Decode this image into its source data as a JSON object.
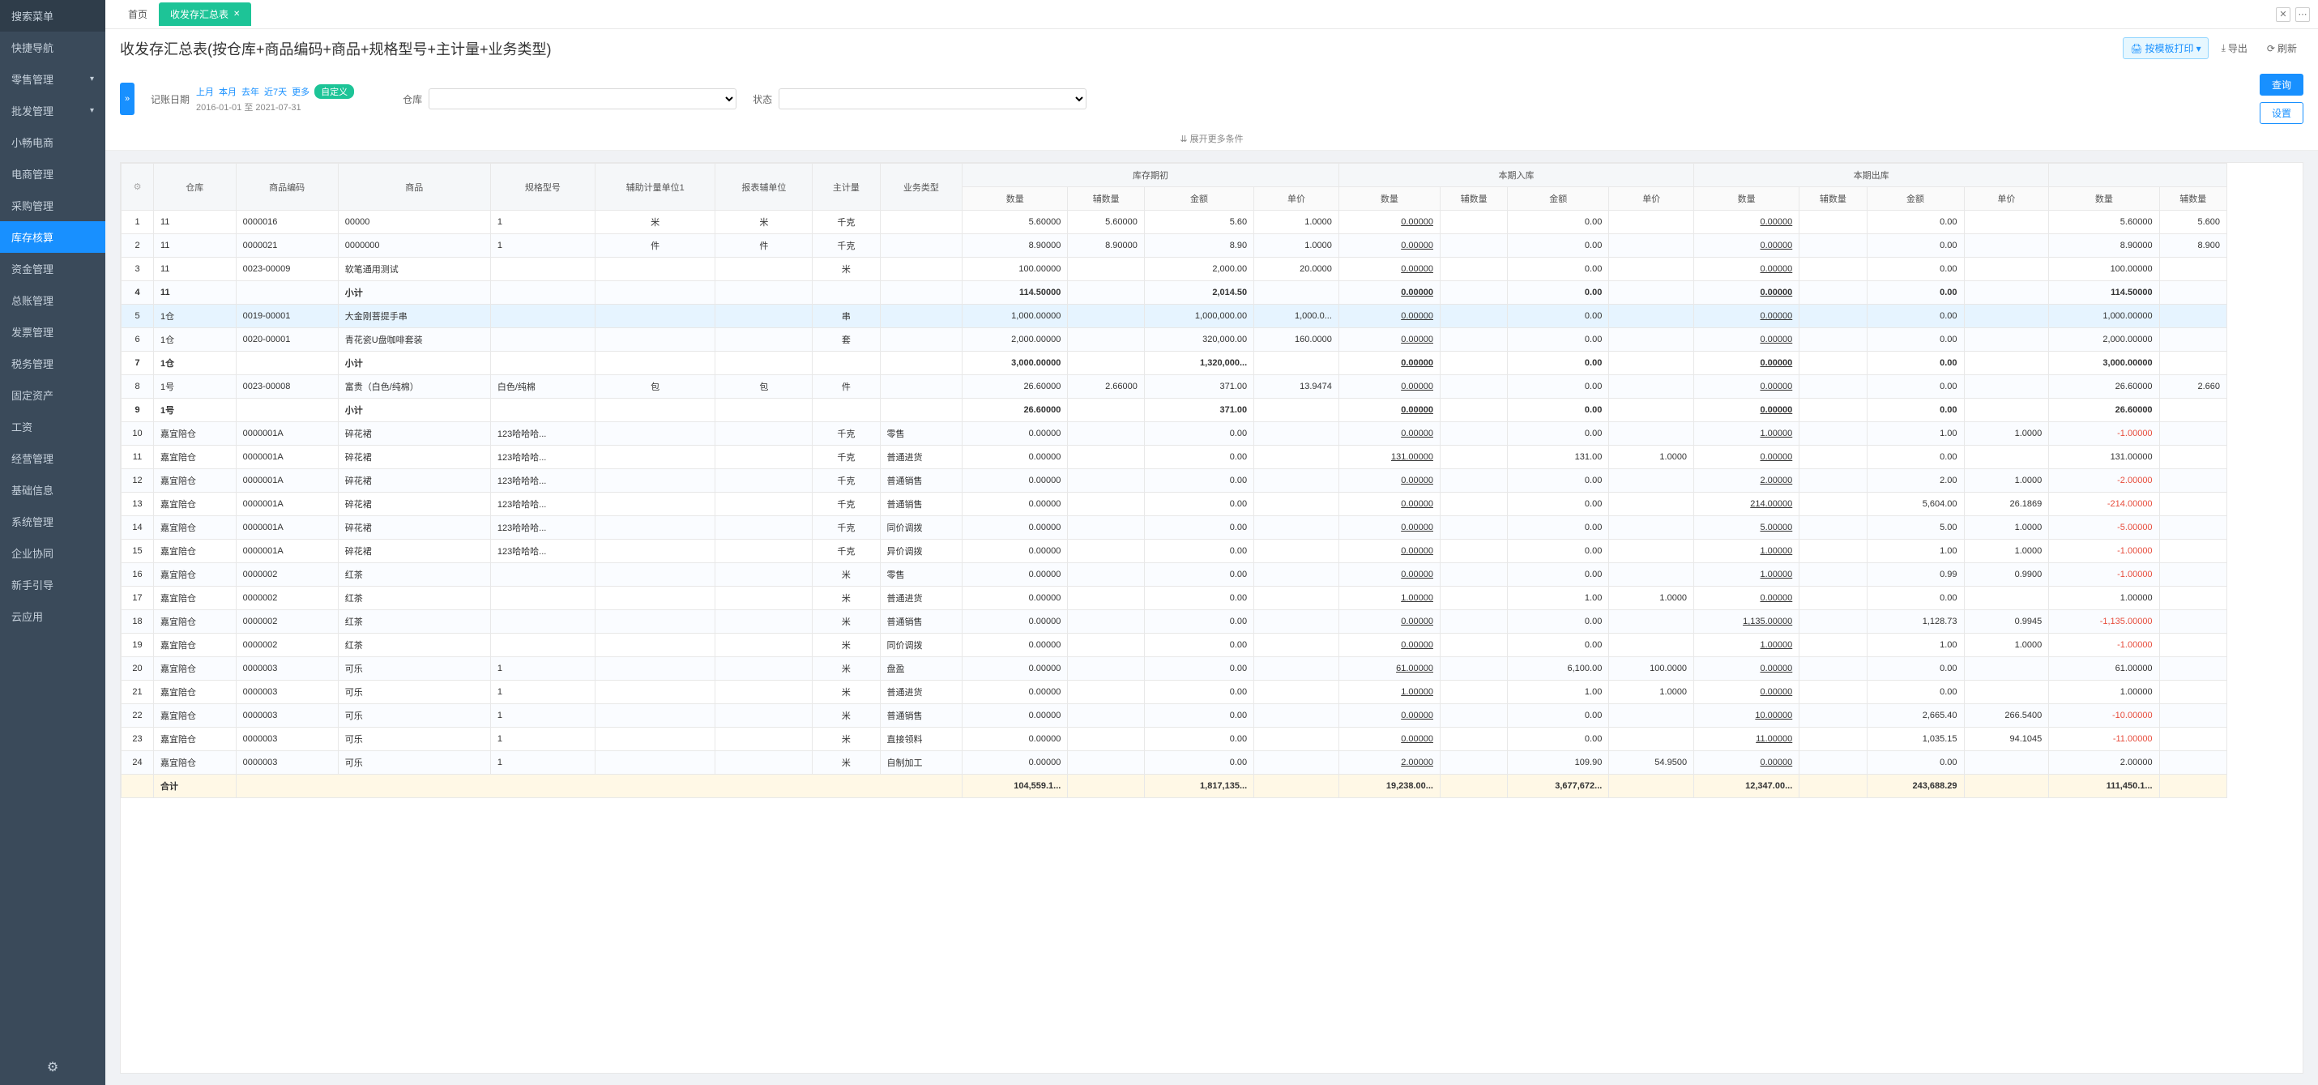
{
  "sidebar": {
    "items": [
      {
        "label": "搜索菜单",
        "hasArrow": false
      },
      {
        "label": "快捷导航",
        "hasArrow": false
      },
      {
        "label": "零售管理",
        "hasArrow": true
      },
      {
        "label": "批发管理",
        "hasArrow": true
      },
      {
        "label": "小畅电商",
        "hasArrow": false
      },
      {
        "label": "电商管理",
        "hasArrow": false
      },
      {
        "label": "采购管理",
        "hasArrow": false
      },
      {
        "label": "库存核算",
        "hasArrow": false,
        "active": true
      },
      {
        "label": "资金管理",
        "hasArrow": false
      },
      {
        "label": "总账管理",
        "hasArrow": false
      },
      {
        "label": "发票管理",
        "hasArrow": false
      },
      {
        "label": "税务管理",
        "hasArrow": false
      },
      {
        "label": "固定资产",
        "hasArrow": false
      },
      {
        "label": "工资",
        "hasArrow": false
      },
      {
        "label": "经营管理",
        "hasArrow": false
      },
      {
        "label": "基础信息",
        "hasArrow": false
      },
      {
        "label": "系统管理",
        "hasArrow": false
      },
      {
        "label": "企业协同",
        "hasArrow": false
      },
      {
        "label": "新手引导",
        "hasArrow": false
      },
      {
        "label": "云应用",
        "hasArrow": false
      }
    ]
  },
  "tabs": {
    "home": "首页",
    "active": "收发存汇总表"
  },
  "page": {
    "title": "收发存汇总表(按仓库+商品编码+商品+规格型号+主计量+业务类型)",
    "actions": {
      "printByTemplate": "按模板打印",
      "export": "导出",
      "refresh": "刷新"
    }
  },
  "filter": {
    "dateLabel": "记账日期",
    "quickLinks": [
      "上月",
      "本月",
      "去年",
      "近7天",
      "更多"
    ],
    "customBadge": "自定义",
    "dateRange": "2016-01-01 至 2021-07-31",
    "warehouseLabel": "仓库",
    "statusLabel": "状态",
    "queryBtn": "查询",
    "settingsBtn": "设置",
    "expandMore": "展开更多条件"
  },
  "table": {
    "groupHeaders": {
      "opening": "库存期初",
      "inbound": "本期入库",
      "outbound": "本期出库"
    },
    "columns": {
      "idx": "",
      "warehouse": "仓库",
      "productCode": "商品编码",
      "product": "商品",
      "spec": "规格型号",
      "aux1": "辅助计量单位1",
      "invUnit": "报表辅单位",
      "mainUnit": "主计量",
      "bizType": "业务类型",
      "qty": "数量",
      "auxQty": "辅数量",
      "amount": "金额",
      "price": "单价"
    },
    "footerLabel": "合计",
    "footer": {
      "open_qty": "104,559.1...",
      "open_amt": "1,817,135...",
      "in_qty": "19,238.00...",
      "in_amt": "3,677,672...",
      "out_qty": "12,347.00...",
      "out_amt": "243,688.29",
      "next_qty": "111,450.1..."
    },
    "rows": [
      {
        "idx": 1,
        "wh": "11",
        "code": "0000016",
        "prod": "00000",
        "spec": "1",
        "aux1": "米",
        "invUnit": "米",
        "mainUnit": "千克",
        "biz": "",
        "o_qty": "5.60000",
        "o_aux": "5.60000",
        "o_amt": "5.60",
        "o_pr": "1.0000",
        "i_qty": "0.00000",
        "i_amt": "0.00",
        "out_qty": "0.00000",
        "out_amt": "0.00",
        "n_qty": "5.60000",
        "n_aux": "5.600"
      },
      {
        "idx": 2,
        "wh": "11",
        "code": "0000021",
        "prod": "0000000",
        "spec": "1",
        "aux1": "件",
        "invUnit": "件",
        "mainUnit": "千克",
        "biz": "",
        "o_qty": "8.90000",
        "o_aux": "8.90000",
        "o_amt": "8.90",
        "o_pr": "1.0000",
        "i_qty": "0.00000",
        "i_amt": "0.00",
        "out_qty": "0.00000",
        "out_amt": "0.00",
        "n_qty": "8.90000",
        "n_aux": "8.900"
      },
      {
        "idx": 3,
        "wh": "11",
        "code": "0023-00009",
        "prod": "软笔通用测试",
        "spec": "",
        "aux1": "",
        "invUnit": "",
        "mainUnit": "米",
        "biz": "",
        "o_qty": "100.00000",
        "o_aux": "",
        "o_amt": "2,000.00",
        "o_pr": "20.0000",
        "i_qty": "0.00000",
        "i_amt": "0.00",
        "out_qty": "0.00000",
        "out_amt": "0.00",
        "n_qty": "100.00000",
        "n_aux": ""
      },
      {
        "idx": 4,
        "wh": "11",
        "code": "",
        "prod": "小计",
        "subtotal": true,
        "o_qty": "114.50000",
        "o_amt": "2,014.50",
        "i_qty": "0.00000",
        "i_amt": "0.00",
        "out_qty": "0.00000",
        "out_amt": "0.00",
        "n_qty": "114.50000"
      },
      {
        "idx": 5,
        "wh": "1仓",
        "code": "0019-00001",
        "prod": "大金刚菩提手串",
        "mainUnit": "串",
        "highlight": true,
        "o_qty": "1,000.00000",
        "o_amt": "1,000,000.00",
        "o_pr": "1,000.0...",
        "i_qty": "0.00000",
        "i_amt": "0.00",
        "out_qty": "0.00000",
        "out_amt": "0.00",
        "n_qty": "1,000.00000"
      },
      {
        "idx": 6,
        "wh": "1仓",
        "code": "0020-00001",
        "prod": "青花瓷U盘咖啡套装",
        "mainUnit": "套",
        "o_qty": "2,000.00000",
        "o_amt": "320,000.00",
        "o_pr": "160.0000",
        "i_qty": "0.00000",
        "i_amt": "0.00",
        "out_qty": "0.00000",
        "out_amt": "0.00",
        "n_qty": "2,000.00000"
      },
      {
        "idx": 7,
        "wh": "1仓",
        "code": "",
        "prod": "小计",
        "subtotal": true,
        "o_qty": "3,000.00000",
        "o_amt": "1,320,000...",
        "i_qty": "0.00000",
        "i_amt": "0.00",
        "out_qty": "0.00000",
        "out_amt": "0.00",
        "n_qty": "3,000.00000"
      },
      {
        "idx": 8,
        "wh": "1号",
        "code": "0023-00008",
        "prod": "富贵（白色/纯棉）",
        "spec": "白色/纯棉",
        "aux1": "包",
        "invUnit": "包",
        "mainUnit": "件",
        "o_qty": "26.60000",
        "o_aux": "2.66000",
        "o_amt": "371.00",
        "o_pr": "13.9474",
        "i_qty": "0.00000",
        "i_amt": "0.00",
        "out_qty": "0.00000",
        "out_amt": "0.00",
        "n_qty": "26.60000",
        "n_aux": "2.660"
      },
      {
        "idx": 9,
        "wh": "1号",
        "code": "",
        "prod": "小计",
        "subtotal": true,
        "o_qty": "26.60000",
        "o_amt": "371.00",
        "i_qty": "0.00000",
        "i_amt": "0.00",
        "out_qty": "0.00000",
        "out_amt": "0.00",
        "n_qty": "26.60000"
      },
      {
        "idx": 10,
        "wh": "嘉宜陪仓",
        "code": "0000001A",
        "prod": "碎花裙",
        "spec": "123哈哈哈...",
        "mainUnit": "千克",
        "biz": "零售",
        "o_qty": "0.00000",
        "o_amt": "0.00",
        "i_qty": "0.00000",
        "i_amt": "0.00",
        "out_qty": "1.00000",
        "out_amt": "1.00",
        "out_pr": "1.0000",
        "n_qty": "-1.00000",
        "neg": true
      },
      {
        "idx": 11,
        "wh": "嘉宜陪仓",
        "code": "0000001A",
        "prod": "碎花裙",
        "spec": "123哈哈哈...",
        "mainUnit": "千克",
        "biz": "普通进货",
        "o_qty": "0.00000",
        "o_amt": "0.00",
        "i_qty": "131.00000",
        "i_amt": "131.00",
        "i_pr": "1.0000",
        "out_qty": "0.00000",
        "out_amt": "0.00",
        "n_qty": "131.00000"
      },
      {
        "idx": 12,
        "wh": "嘉宜陪仓",
        "code": "0000001A",
        "prod": "碎花裙",
        "spec": "123哈哈哈...",
        "mainUnit": "千克",
        "biz": "普通销售",
        "o_qty": "0.00000",
        "o_amt": "0.00",
        "i_qty": "0.00000",
        "i_amt": "0.00",
        "out_qty": "2.00000",
        "out_amt": "2.00",
        "out_pr": "1.0000",
        "n_qty": "-2.00000",
        "neg": true
      },
      {
        "idx": 13,
        "wh": "嘉宜陪仓",
        "code": "0000001A",
        "prod": "碎花裙",
        "spec": "123哈哈哈...",
        "mainUnit": "千克",
        "biz": "普通销售",
        "o_qty": "0.00000",
        "o_amt": "0.00",
        "i_qty": "0.00000",
        "i_amt": "0.00",
        "out_qty": "214.00000",
        "out_amt": "5,604.00",
        "out_pr": "26.1869",
        "n_qty": "-214.00000",
        "neg": true
      },
      {
        "idx": 14,
        "wh": "嘉宜陪仓",
        "code": "0000001A",
        "prod": "碎花裙",
        "spec": "123哈哈哈...",
        "mainUnit": "千克",
        "biz": "同价调拨",
        "o_qty": "0.00000",
        "o_amt": "0.00",
        "i_qty": "0.00000",
        "i_amt": "0.00",
        "out_qty": "5.00000",
        "out_amt": "5.00",
        "out_pr": "1.0000",
        "n_qty": "-5.00000",
        "neg": true
      },
      {
        "idx": 15,
        "wh": "嘉宜陪仓",
        "code": "0000001A",
        "prod": "碎花裙",
        "spec": "123哈哈哈...",
        "mainUnit": "千克",
        "biz": "异价调拨",
        "o_qty": "0.00000",
        "o_amt": "0.00",
        "i_qty": "0.00000",
        "i_amt": "0.00",
        "out_qty": "1.00000",
        "out_amt": "1.00",
        "out_pr": "1.0000",
        "n_qty": "-1.00000",
        "neg": true
      },
      {
        "idx": 16,
        "wh": "嘉宜陪仓",
        "code": "0000002",
        "prod": "红茶",
        "mainUnit": "米",
        "biz": "零售",
        "o_qty": "0.00000",
        "o_amt": "0.00",
        "i_qty": "0.00000",
        "i_amt": "0.00",
        "out_qty": "1.00000",
        "out_amt": "0.99",
        "out_pr": "0.9900",
        "n_qty": "-1.00000",
        "neg": true
      },
      {
        "idx": 17,
        "wh": "嘉宜陪仓",
        "code": "0000002",
        "prod": "红茶",
        "mainUnit": "米",
        "biz": "普通进货",
        "o_qty": "0.00000",
        "o_amt": "0.00",
        "i_qty": "1.00000",
        "i_amt": "1.00",
        "i_pr": "1.0000",
        "out_qty": "0.00000",
        "out_amt": "0.00",
        "n_qty": "1.00000"
      },
      {
        "idx": 18,
        "wh": "嘉宜陪仓",
        "code": "0000002",
        "prod": "红茶",
        "mainUnit": "米",
        "biz": "普通销售",
        "o_qty": "0.00000",
        "o_amt": "0.00",
        "i_qty": "0.00000",
        "i_amt": "0.00",
        "out_qty": "1,135.00000",
        "out_amt": "1,128.73",
        "out_pr": "0.9945",
        "n_qty": "-1,135.00000",
        "neg": true
      },
      {
        "idx": 19,
        "wh": "嘉宜陪仓",
        "code": "0000002",
        "prod": "红茶",
        "mainUnit": "米",
        "biz": "同价调拨",
        "o_qty": "0.00000",
        "o_amt": "0.00",
        "i_qty": "0.00000",
        "i_amt": "0.00",
        "out_qty": "1.00000",
        "out_amt": "1.00",
        "out_pr": "1.0000",
        "n_qty": "-1.00000",
        "neg": true
      },
      {
        "idx": 20,
        "wh": "嘉宜陪仓",
        "code": "0000003",
        "prod": "可乐",
        "spec": "1",
        "mainUnit": "米",
        "biz": "盘盈",
        "o_qty": "0.00000",
        "o_amt": "0.00",
        "i_qty": "61.00000",
        "i_amt": "6,100.00",
        "i_pr": "100.0000",
        "out_qty": "0.00000",
        "out_amt": "0.00",
        "n_qty": "61.00000"
      },
      {
        "idx": 21,
        "wh": "嘉宜陪仓",
        "code": "0000003",
        "prod": "可乐",
        "spec": "1",
        "mainUnit": "米",
        "biz": "普通进货",
        "o_qty": "0.00000",
        "o_amt": "0.00",
        "i_qty": "1.00000",
        "i_amt": "1.00",
        "i_pr": "1.0000",
        "out_qty": "0.00000",
        "out_amt": "0.00",
        "n_qty": "1.00000"
      },
      {
        "idx": 22,
        "wh": "嘉宜陪仓",
        "code": "0000003",
        "prod": "可乐",
        "spec": "1",
        "mainUnit": "米",
        "biz": "普通销售",
        "o_qty": "0.00000",
        "o_amt": "0.00",
        "i_qty": "0.00000",
        "i_amt": "0.00",
        "out_qty": "10.00000",
        "out_amt": "2,665.40",
        "out_pr": "266.5400",
        "n_qty": "-10.00000",
        "neg": true
      },
      {
        "idx": 23,
        "wh": "嘉宜陪仓",
        "code": "0000003",
        "prod": "可乐",
        "spec": "1",
        "mainUnit": "米",
        "biz": "直接领料",
        "o_qty": "0.00000",
        "o_amt": "0.00",
        "i_qty": "0.00000",
        "i_amt": "0.00",
        "out_qty": "11.00000",
        "out_amt": "1,035.15",
        "out_pr": "94.1045",
        "n_qty": "-11.00000",
        "neg": true
      },
      {
        "idx": 24,
        "wh": "嘉宜陪仓",
        "code": "0000003",
        "prod": "可乐",
        "spec": "1",
        "mainUnit": "米",
        "biz": "自制加工",
        "o_qty": "0.00000",
        "o_amt": "0.00",
        "i_qty": "2.00000",
        "i_amt": "109.90",
        "i_pr": "54.9500",
        "out_qty": "0.00000",
        "out_amt": "0.00",
        "n_qty": "2.00000"
      }
    ]
  }
}
